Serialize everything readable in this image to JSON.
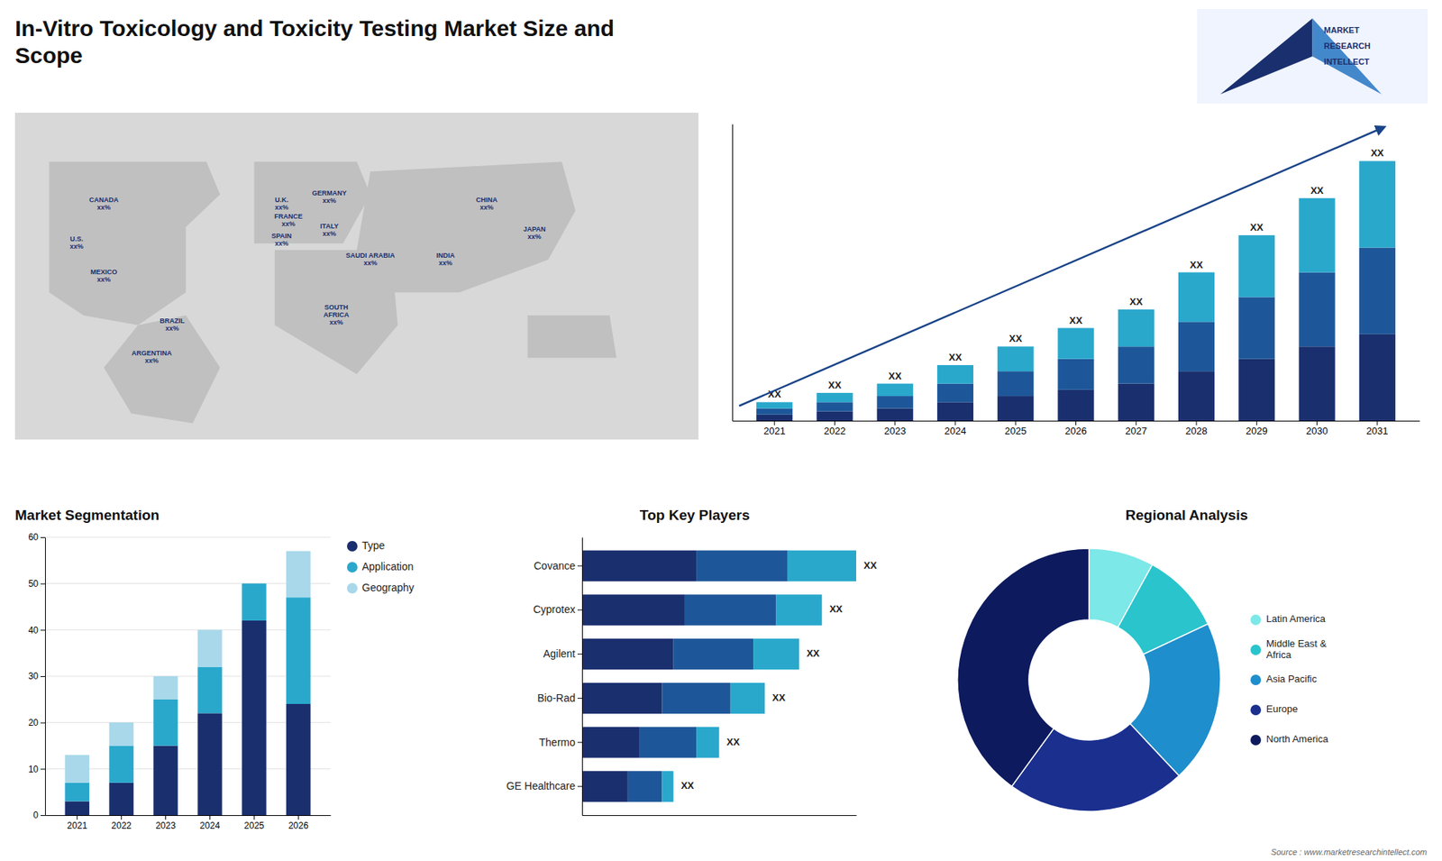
{
  "chart_data": [
    {
      "type": "bar",
      "title": "In-Vitro Toxicology and Toxicity Testing Market Size and\nScope",
      "categories": [
        "2021",
        "2022",
        "2023",
        "2024",
        "2025",
        "2026",
        "2027",
        "2028",
        "2029",
        "2030",
        "2031"
      ],
      "series": [
        {
          "color": "#1a2f6e",
          "values": [
            1,
            1.5,
            2,
            3,
            4,
            5,
            6,
            8,
            10,
            12,
            14
          ]
        },
        {
          "color": "#1e5799",
          "values": [
            1,
            1.5,
            2,
            3,
            4,
            5,
            6,
            8,
            10,
            12,
            14
          ]
        },
        {
          "color": "#29a8cc",
          "values": [
            1,
            1.5,
            2,
            3,
            4,
            5,
            6,
            8,
            10,
            12,
            14
          ]
        }
      ],
      "stacked": true,
      "ylim": [
        0,
        48
      ],
      "tick_labels": "x",
      "annotations": [
        "XX",
        "XX",
        "XX",
        "XX",
        "XX",
        "XX",
        "XX",
        "XX",
        "XX",
        "XX",
        "XX"
      ],
      "source": "Source : www.marketresearchintellect.com",
      "logo_text": [
        "MARKET",
        "RESEARCH",
        "INTELLECT"
      ]
    },
    {
      "type": "map",
      "annotations": [
        "CANADA\nxx%",
        "U.S.\nxx%",
        "MEXICO\nxx%",
        "BRAZIL\nxx%",
        "ARGENTINA\nxx%",
        "U.K.\nxx%",
        "FRANCE\nxx%",
        "SPAIN\nxx%",
        "GERMANY\nxx%",
        "ITALY\nxx%",
        "SAUDI ARABIA\nxx%",
        "SOUTH\nAFRICA\nxx%",
        "CHINA\nxx%",
        "JAPAN\nxx%",
        "INDIA\nxx%"
      ]
    },
    {
      "type": "bar",
      "title": "Market Segmentation",
      "categories": [
        "2021",
        "2022",
        "2023",
        "2024",
        "2025",
        "2026"
      ],
      "series": [
        {
          "name": "Type",
          "color": "#1a2f6e",
          "values": [
            3,
            7,
            15,
            22,
            42,
            24
          ]
        },
        {
          "name": "Application",
          "color": "#29a8cc",
          "values": [
            4,
            8,
            10,
            10,
            8,
            23
          ]
        },
        {
          "name": "Geography",
          "color": "#a8d8ea",
          "values": [
            6,
            5,
            5,
            8,
            0,
            10
          ]
        }
      ],
      "stacked": true,
      "ylim": [
        0,
        60
      ],
      "yticks": [
        0,
        10,
        20,
        30,
        40,
        50,
        60
      ],
      "grid": true,
      "legend": "right"
    },
    {
      "type": "bar",
      "title": "Top Key Players",
      "orientation": "horizontal",
      "categories": [
        "Covance",
        "Cyprotex",
        "Agilent",
        "Bio-Rad",
        "Thermo",
        "GE Healthcare"
      ],
      "series": [
        {
          "color": "#1a2f6e",
          "values": [
            5,
            4.5,
            4,
            3.5,
            2.5,
            2
          ]
        },
        {
          "color": "#1e5799",
          "values": [
            4,
            4,
            3.5,
            3,
            2.5,
            1.5
          ]
        },
        {
          "color": "#29a8cc",
          "values": [
            3,
            2,
            2,
            1.5,
            1,
            0.5
          ]
        }
      ],
      "stacked": true,
      "xlim": [
        0,
        12
      ],
      "tick_labels": "y",
      "annotations": [
        "XX",
        "XX",
        "XX",
        "XX",
        "XX",
        "XX"
      ]
    },
    {
      "type": "donut",
      "title": "Regional Analysis",
      "categories": [
        "Latin America",
        "Middle East &\nAfrica",
        "Asia Pacific",
        "Europe",
        "North America"
      ],
      "values": [
        8,
        10,
        20,
        22,
        40
      ],
      "colors": [
        "#7ce8e8",
        "#29c4cc",
        "#1e8ecc",
        "#1a2f8e",
        "#0d1a5e"
      ],
      "legend": "right"
    }
  ]
}
